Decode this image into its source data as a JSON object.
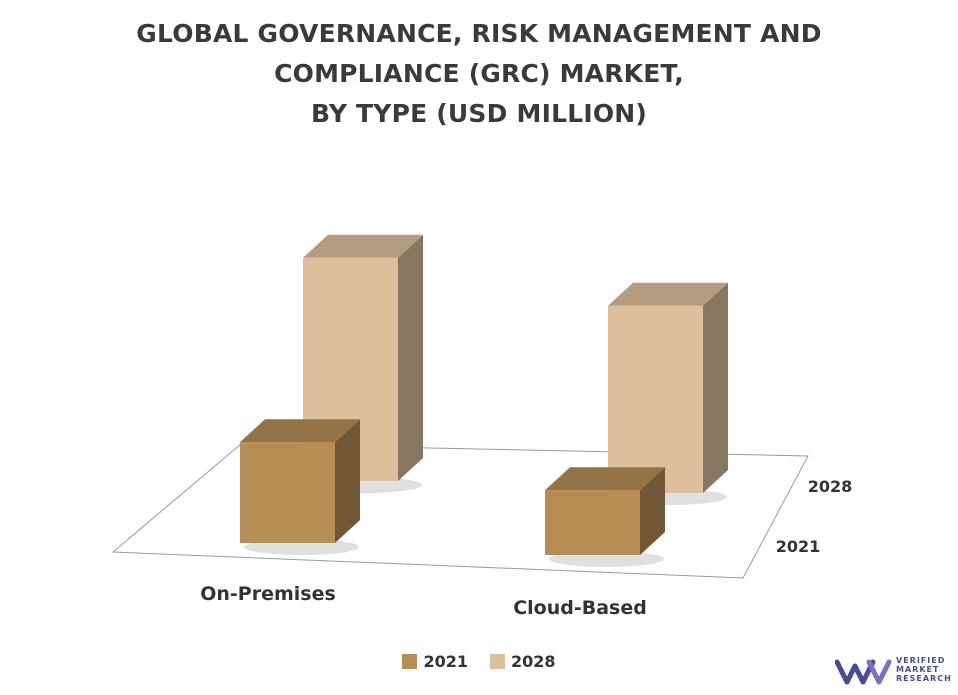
{
  "title": {
    "line1": "GLOBAL GOVERNANCE, RISK MANAGEMENT AND",
    "line2": "COMPLIANCE (GRC) MARKET,",
    "line3": "BY TYPE (USD MILLION)"
  },
  "chart_data": {
    "type": "bar",
    "title": "GLOBAL GOVERNANCE, RISK MANAGEMENT AND COMPLIANCE (GRC) MARKET, BY TYPE (USD MILLION)",
    "categories": [
      "On-Premises",
      "Cloud-Based"
    ],
    "depth_labels": [
      "2028",
      "2021"
    ],
    "series": [
      {
        "name": "2021",
        "values": [
          28,
          18
        ],
        "color": "#b58d55"
      },
      {
        "name": "2028",
        "values": [
          62,
          52
        ],
        "color": "#dcc09b"
      }
    ],
    "ylim": [
      0,
      70
    ],
    "grid": false,
    "legend": "bottom-center"
  },
  "legend": [
    {
      "label": "2021",
      "color": "#b58d55"
    },
    {
      "label": "2028",
      "color": "#dcc09b"
    }
  ],
  "brand": {
    "logo_text": [
      "VERIFIED",
      "MARKET",
      "RESEARCH"
    ],
    "color": "#4a4a9a"
  }
}
